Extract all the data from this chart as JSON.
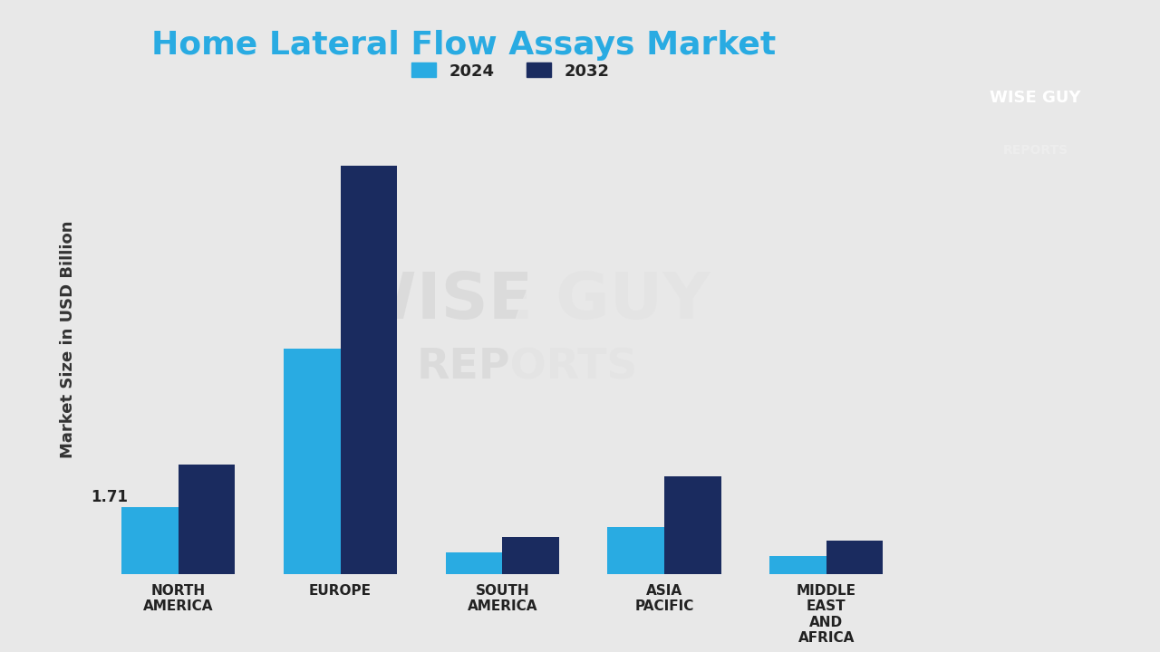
{
  "title": "Home Lateral Flow Assays Market",
  "ylabel": "Market Size in USD Billion",
  "categories": [
    "NORTH\nAMERICA",
    "EUROPE",
    "SOUTH\nAMERICA",
    "ASIA\nPACIFIC",
    "MIDDLE\nEAST\nAND\nAFRICA"
  ],
  "values_2024": [
    1.71,
    5.8,
    0.55,
    1.2,
    0.45
  ],
  "values_2032": [
    2.8,
    10.5,
    0.95,
    2.5,
    0.85
  ],
  "color_2024": "#29ABE2",
  "color_2032": "#1A2B5F",
  "background_color": "#E8E8E8",
  "right_panel_color": "#1A2B5F",
  "title_color": "#29ABE2",
  "label_2024": "2024",
  "label_2032": "2032",
  "annotation_text": "1.71",
  "bar_width": 0.35,
  "legend_fontsize": 13,
  "title_fontsize": 26,
  "ylabel_fontsize": 13,
  "tick_fontsize": 11
}
